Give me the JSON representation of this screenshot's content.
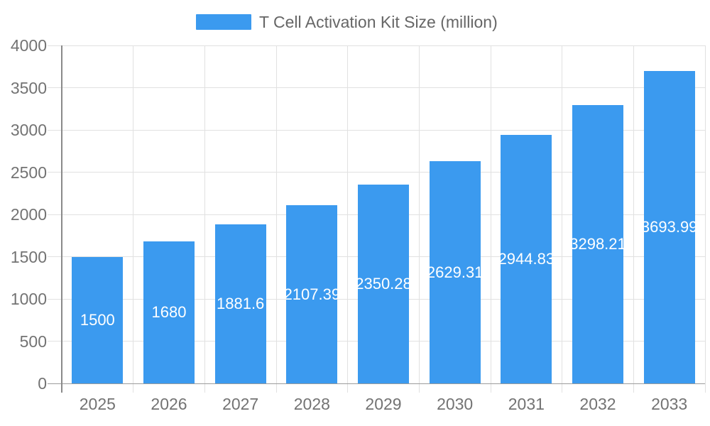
{
  "legend": {
    "label": "T Cell Activation Kit Size (million)"
  },
  "chart_data": {
    "type": "bar",
    "title": "T Cell Activation Kit Size (million)",
    "categories": [
      "2025",
      "2026",
      "2027",
      "2028",
      "2029",
      "2030",
      "2031",
      "2032",
      "2033"
    ],
    "series": [
      {
        "name": "T Cell Activation Kit Size (million)",
        "values": [
          1500,
          1680,
          1881.6,
          2107.39,
          2350.28,
          2629.31,
          2944.83,
          3298.21,
          3693.99
        ]
      }
    ],
    "bar_labels": [
      "1500",
      "1680",
      "1881.6",
      "2107.39",
      "2350.28",
      "2629.31",
      "2944.83",
      "3298.21",
      "3693.99"
    ],
    "xlabel": "",
    "ylabel": "",
    "ylim": [
      0,
      4000
    ],
    "yticks": [
      0,
      500,
      1000,
      1500,
      2000,
      2500,
      3000,
      3500,
      4000
    ],
    "ytick_labels": [
      "0",
      "500",
      "1000",
      "1500",
      "2000",
      "2500",
      "3000",
      "3500",
      "4000"
    ],
    "grid": "on",
    "legend_position": "top-center",
    "colors": {
      "bar": "#3B9AEF",
      "grid": "#E1E1E1",
      "axis_y": "#8A8A8A",
      "axis_x": "#9C9C9C",
      "tick_text": "#737373",
      "legend_text": "#666666",
      "bar_label_text": "#FFFFFF",
      "background": "#FFFFFF"
    }
  }
}
